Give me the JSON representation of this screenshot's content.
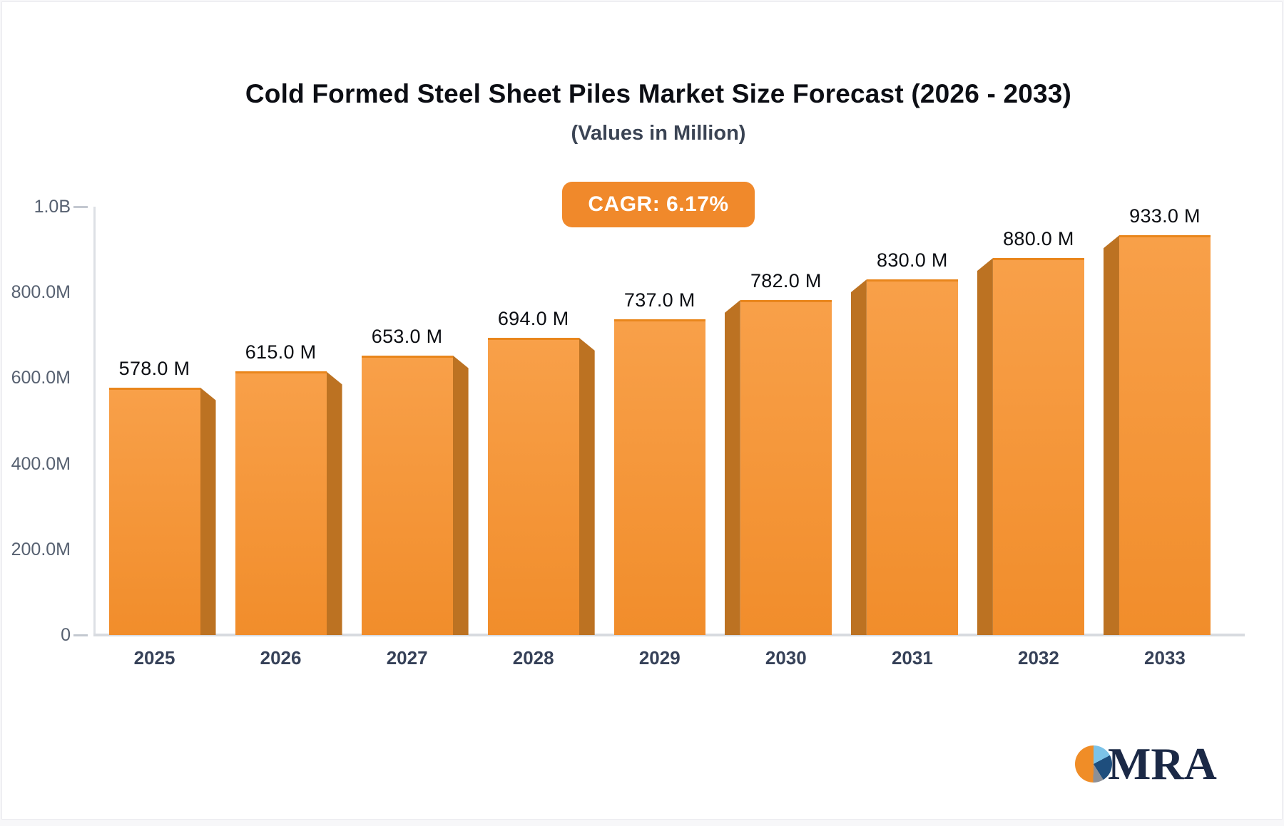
{
  "header": {
    "title": "Cold Formed Steel Sheet Piles Market Size Forecast (2026 - 2033)",
    "subtitle": "(Values in Million)",
    "cagr_label": "CAGR: 6.17%",
    "badge_color": "#f0892b"
  },
  "chart_data": {
    "type": "bar",
    "title": "Cold Formed Steel Sheet Piles Market Size Forecast (2026 - 2033)",
    "subtitle": "(Values in Million)",
    "unit": "Million USD",
    "categories": [
      "2025",
      "2026",
      "2027",
      "2028",
      "2029",
      "2030",
      "2031",
      "2032",
      "2033"
    ],
    "values": [
      578,
      615,
      653,
      694,
      737,
      782,
      830,
      880,
      933
    ],
    "value_labels": [
      "578.0 M",
      "615.0 M",
      "653.0 M",
      "694.0 M",
      "737.0 M",
      "782.0 M",
      "830.0 M",
      "880.0 M",
      "933.0 M"
    ],
    "cagr_percent": 6.17,
    "ylim": [
      0,
      1000
    ],
    "y_axis": {
      "max": 1000,
      "ticks": [
        {
          "value": 0,
          "label": "0"
        },
        {
          "value": 200,
          "label": "200.0M"
        },
        {
          "value": 400,
          "label": "400.0M"
        },
        {
          "value": 600,
          "label": "600.0M"
        },
        {
          "value": 800,
          "label": "800.0M"
        },
        {
          "value": 1000,
          "label": "1.0B"
        }
      ]
    },
    "grid": false,
    "legend": false,
    "style": {
      "bar_front_top": "#f8a049",
      "bar_front_bottom": "#f18d2b",
      "bar_top_edge": "#e9861c",
      "bar_side": "#bc7222"
    }
  },
  "logo": {
    "text": "MRA",
    "text_color": "#1b2946",
    "pie_slices": [
      {
        "color": "#7cc3e8",
        "from": 0,
        "to": 62
      },
      {
        "color": "#1e4e7d",
        "from": 62,
        "to": 148
      },
      {
        "color": "#8d9097",
        "from": 148,
        "to": 181
      },
      {
        "color": "#f08d27",
        "from": 181,
        "to": 360
      }
    ]
  }
}
